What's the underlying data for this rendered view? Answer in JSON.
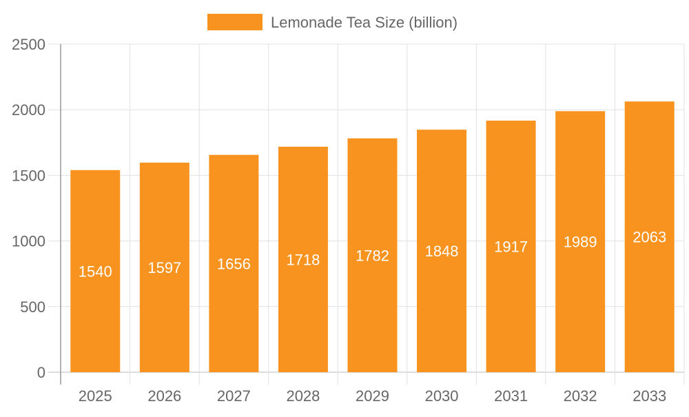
{
  "chart_data": {
    "type": "bar",
    "title": "",
    "xlabel": "",
    "ylabel": "",
    "categories": [
      "2025",
      "2026",
      "2027",
      "2028",
      "2029",
      "2030",
      "2031",
      "2032",
      "2033"
    ],
    "series": [
      {
        "name": "Lemonade Tea Size (billion)",
        "values": [
          1540,
          1597,
          1656,
          1718,
          1782,
          1848,
          1917,
          1989,
          2063
        ],
        "color": "#f7931e"
      }
    ],
    "ylim": [
      0,
      2500
    ],
    "yticks": [
      0,
      500,
      1000,
      1500,
      2000,
      2500
    ],
    "grid": true,
    "legend": "top-center",
    "data_labels": "inside-center"
  }
}
